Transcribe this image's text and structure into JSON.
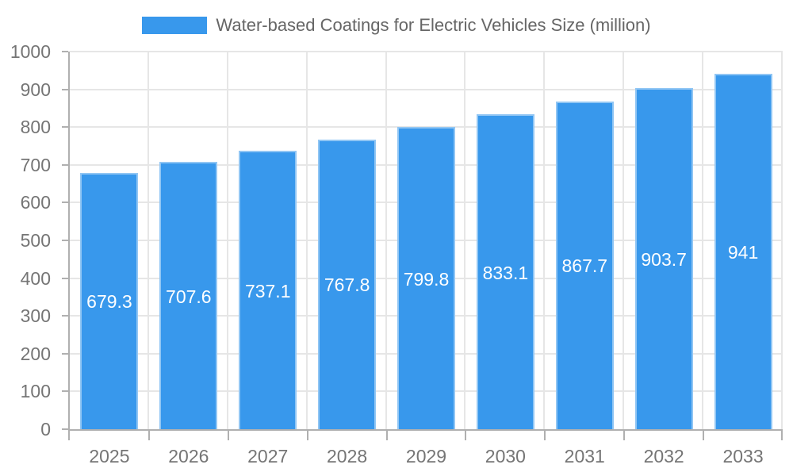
{
  "chart_data": {
    "type": "bar",
    "title": "Water-based Coatings for Electric Vehicles Size (million)",
    "categories": [
      "2025",
      "2026",
      "2027",
      "2028",
      "2029",
      "2030",
      "2031",
      "2032",
      "2033"
    ],
    "values": [
      679.3,
      707.6,
      737.1,
      767.8,
      799.8,
      833.1,
      867.7,
      903.7,
      941
    ],
    "value_labels": [
      "679.3",
      "707.6",
      "737.1",
      "767.8",
      "799.8",
      "833.1",
      "867.7",
      "903.7",
      "941"
    ],
    "yticks": [
      0,
      100,
      200,
      300,
      400,
      500,
      600,
      700,
      800,
      900,
      1000
    ],
    "ylim": [
      0,
      1000
    ],
    "xlabel": "",
    "ylabel": "",
    "legend_position": "top",
    "grid": true,
    "colors": {
      "bar": "#3898ec",
      "bar_label": "#ffffff",
      "axis_text": "#757575",
      "legend_text": "#666666",
      "gridline": "#e6e6e6",
      "axis_line": "#b0b0b0"
    }
  }
}
